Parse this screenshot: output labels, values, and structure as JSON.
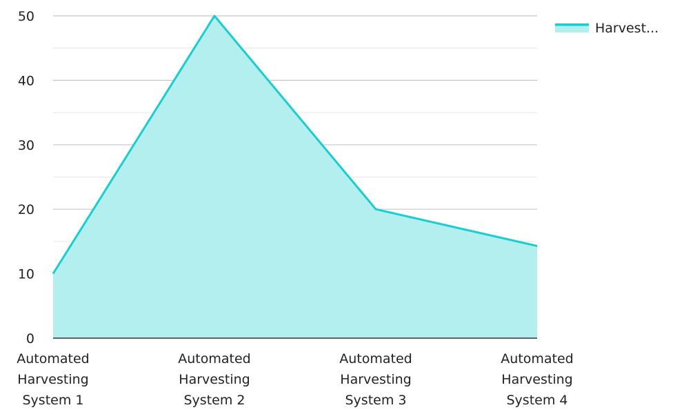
{
  "chart_data": {
    "type": "area",
    "categories": [
      "Automated Harvesting System 1",
      "Automated Harvesting System 2",
      "Automated Harvesting System 3",
      "Automated Harvesting System 4"
    ],
    "category_lines": [
      [
        "Automated",
        "Harvesting",
        "System 1"
      ],
      [
        "Automated",
        "Harvesting",
        "System 2"
      ],
      [
        "Automated",
        "Harvesting",
        "System 3"
      ],
      [
        "Automated",
        "Harvesting",
        "System 4"
      ]
    ],
    "series": [
      {
        "name": "Harvest...",
        "values": [
          10,
          50,
          20,
          14.3
        ]
      }
    ],
    "ylim": [
      0,
      50
    ],
    "yticks": [
      0,
      10,
      20,
      30,
      40,
      50
    ],
    "grid": true,
    "legend_position": "top-right",
    "colors": {
      "line": "#1ccdcf",
      "fill": "#b2efee"
    }
  }
}
